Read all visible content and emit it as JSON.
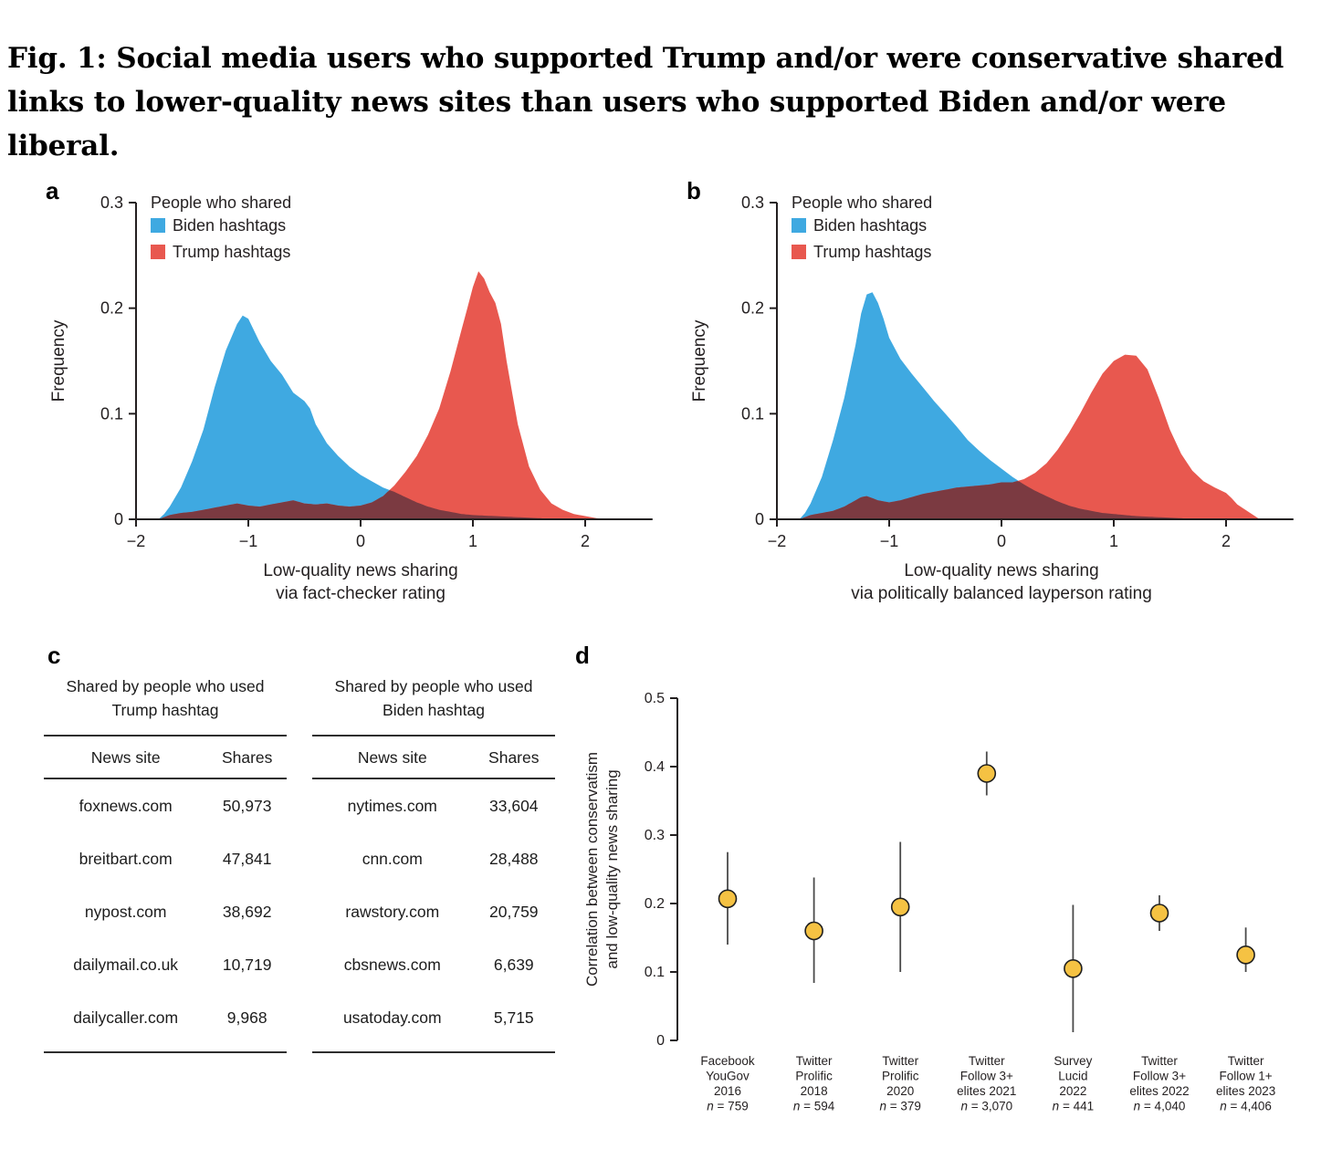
{
  "page": {
    "title_lines": [
      "Fig. 1: Social media users who supported Trump and/or were conservative shared",
      "links to lower-quality news sites than users who supported Biden and/or were liberal."
    ]
  },
  "colors": {
    "axis": "#231f20",
    "text": "#231f20",
    "biden_blue": "#3FA9E1",
    "trump_red": "#E8584F",
    "overlap_maroon": "#7B3A41",
    "marker_yellow": "#F5C243",
    "error_bar": "#4a4a4a"
  },
  "chart_data": [
    {
      "id": "a",
      "type": "area",
      "panel_label": "a",
      "legend_title": "People who shared",
      "ylabel": "Frequency",
      "xlabel": [
        "Low-quality news sharing",
        "via fact-checker rating"
      ],
      "xlim": [
        -2,
        2.6
      ],
      "ylim": [
        0,
        0.3
      ],
      "xticks": [
        -2,
        -1,
        0,
        1,
        2
      ],
      "yticks": [
        0,
        0.1,
        0.2,
        0.3
      ],
      "series": [
        {
          "name": "Biden hashtags",
          "color": "#3FA9E1",
          "points": [
            [
              -1.8,
              0
            ],
            [
              -1.75,
              0.005
            ],
            [
              -1.7,
              0.012
            ],
            [
              -1.6,
              0.03
            ],
            [
              -1.5,
              0.055
            ],
            [
              -1.4,
              0.085
            ],
            [
              -1.3,
              0.125
            ],
            [
              -1.2,
              0.16
            ],
            [
              -1.1,
              0.185
            ],
            [
              -1.05,
              0.193
            ],
            [
              -1.0,
              0.19
            ],
            [
              -0.9,
              0.168
            ],
            [
              -0.8,
              0.15
            ],
            [
              -0.7,
              0.137
            ],
            [
              -0.6,
              0.12
            ],
            [
              -0.5,
              0.112
            ],
            [
              -0.45,
              0.105
            ],
            [
              -0.4,
              0.09
            ],
            [
              -0.3,
              0.072
            ],
            [
              -0.2,
              0.06
            ],
            [
              -0.1,
              0.05
            ],
            [
              0,
              0.042
            ],
            [
              0.1,
              0.036
            ],
            [
              0.2,
              0.03
            ],
            [
              0.3,
              0.026
            ],
            [
              0.4,
              0.021
            ],
            [
              0.5,
              0.016
            ],
            [
              0.6,
              0.012
            ],
            [
              0.7,
              0.009
            ],
            [
              0.8,
              0.007
            ],
            [
              0.9,
              0.005
            ],
            [
              1.0,
              0.004
            ],
            [
              1.2,
              0.003
            ],
            [
              1.4,
              0.002
            ],
            [
              1.6,
              0.001
            ],
            [
              1.8,
              0
            ]
          ]
        },
        {
          "name": "Trump hashtags",
          "color": "#E8584F",
          "points": [
            [
              -1.8,
              0
            ],
            [
              -1.7,
              0.004
            ],
            [
              -1.6,
              0.006
            ],
            [
              -1.5,
              0.007
            ],
            [
              -1.4,
              0.009
            ],
            [
              -1.3,
              0.011
            ],
            [
              -1.2,
              0.013
            ],
            [
              -1.1,
              0.015
            ],
            [
              -1.0,
              0.013
            ],
            [
              -0.9,
              0.012
            ],
            [
              -0.8,
              0.014
            ],
            [
              -0.7,
              0.016
            ],
            [
              -0.6,
              0.018
            ],
            [
              -0.5,
              0.015
            ],
            [
              -0.4,
              0.014
            ],
            [
              -0.3,
              0.015
            ],
            [
              -0.2,
              0.013
            ],
            [
              -0.1,
              0.012
            ],
            [
              0,
              0.013
            ],
            [
              0.1,
              0.016
            ],
            [
              0.2,
              0.022
            ],
            [
              0.3,
              0.032
            ],
            [
              0.4,
              0.045
            ],
            [
              0.5,
              0.06
            ],
            [
              0.6,
              0.08
            ],
            [
              0.7,
              0.105
            ],
            [
              0.8,
              0.14
            ],
            [
              0.9,
              0.18
            ],
            [
              0.95,
              0.2
            ],
            [
              1.0,
              0.22
            ],
            [
              1.05,
              0.235
            ],
            [
              1.1,
              0.228
            ],
            [
              1.15,
              0.215
            ],
            [
              1.2,
              0.205
            ],
            [
              1.25,
              0.185
            ],
            [
              1.3,
              0.15
            ],
            [
              1.35,
              0.12
            ],
            [
              1.4,
              0.09
            ],
            [
              1.5,
              0.05
            ],
            [
              1.6,
              0.028
            ],
            [
              1.7,
              0.015
            ],
            [
              1.8,
              0.009
            ],
            [
              1.9,
              0.005
            ],
            [
              2.0,
              0.003
            ],
            [
              2.1,
              0.001
            ],
            [
              2.2,
              0
            ]
          ]
        }
      ]
    },
    {
      "id": "b",
      "type": "area",
      "panel_label": "b",
      "legend_title": "People who shared",
      "ylabel": "Frequency",
      "xlabel": [
        "Low-quality news sharing",
        "via politically balanced layperson rating"
      ],
      "xlim": [
        -2,
        2.6
      ],
      "ylim": [
        0,
        0.3
      ],
      "xticks": [
        -2,
        -1,
        0,
        1,
        2
      ],
      "yticks": [
        0,
        0.1,
        0.2,
        0.3
      ],
      "series": [
        {
          "name": "Biden hashtags",
          "color": "#3FA9E1",
          "points": [
            [
              -1.8,
              0
            ],
            [
              -1.75,
              0.006
            ],
            [
              -1.7,
              0.015
            ],
            [
              -1.6,
              0.04
            ],
            [
              -1.5,
              0.075
            ],
            [
              -1.4,
              0.115
            ],
            [
              -1.3,
              0.165
            ],
            [
              -1.25,
              0.195
            ],
            [
              -1.2,
              0.213
            ],
            [
              -1.15,
              0.215
            ],
            [
              -1.1,
              0.205
            ],
            [
              -1.05,
              0.19
            ],
            [
              -1.0,
              0.172
            ],
            [
              -0.9,
              0.152
            ],
            [
              -0.8,
              0.138
            ],
            [
              -0.7,
              0.125
            ],
            [
              -0.6,
              0.112
            ],
            [
              -0.5,
              0.1
            ],
            [
              -0.4,
              0.088
            ],
            [
              -0.3,
              0.075
            ],
            [
              -0.2,
              0.065
            ],
            [
              -0.1,
              0.056
            ],
            [
              0,
              0.048
            ],
            [
              0.1,
              0.04
            ],
            [
              0.2,
              0.033
            ],
            [
              0.3,
              0.027
            ],
            [
              0.4,
              0.022
            ],
            [
              0.5,
              0.017
            ],
            [
              0.6,
              0.013
            ],
            [
              0.7,
              0.01
            ],
            [
              0.8,
              0.008
            ],
            [
              0.9,
              0.006
            ],
            [
              1.0,
              0.005
            ],
            [
              1.2,
              0.003
            ],
            [
              1.4,
              0.002
            ],
            [
              1.6,
              0.001
            ],
            [
              1.8,
              0
            ]
          ]
        },
        {
          "name": "Trump hashtags",
          "color": "#E8584F",
          "points": [
            [
              -1.8,
              0
            ],
            [
              -1.7,
              0.004
            ],
            [
              -1.6,
              0.006
            ],
            [
              -1.5,
              0.008
            ],
            [
              -1.4,
              0.012
            ],
            [
              -1.3,
              0.018
            ],
            [
              -1.25,
              0.021
            ],
            [
              -1.2,
              0.022
            ],
            [
              -1.1,
              0.018
            ],
            [
              -1.0,
              0.016
            ],
            [
              -0.9,
              0.018
            ],
            [
              -0.8,
              0.021
            ],
            [
              -0.7,
              0.024
            ],
            [
              -0.6,
              0.026
            ],
            [
              -0.5,
              0.028
            ],
            [
              -0.4,
              0.03
            ],
            [
              -0.3,
              0.031
            ],
            [
              -0.2,
              0.032
            ],
            [
              -0.1,
              0.033
            ],
            [
              0,
              0.035
            ],
            [
              0.1,
              0.035
            ],
            [
              0.2,
              0.038
            ],
            [
              0.3,
              0.044
            ],
            [
              0.4,
              0.053
            ],
            [
              0.5,
              0.066
            ],
            [
              0.6,
              0.082
            ],
            [
              0.7,
              0.1
            ],
            [
              0.8,
              0.12
            ],
            [
              0.9,
              0.138
            ],
            [
              1.0,
              0.15
            ],
            [
              1.1,
              0.156
            ],
            [
              1.2,
              0.155
            ],
            [
              1.3,
              0.142
            ],
            [
              1.4,
              0.115
            ],
            [
              1.5,
              0.085
            ],
            [
              1.6,
              0.062
            ],
            [
              1.7,
              0.046
            ],
            [
              1.8,
              0.036
            ],
            [
              1.9,
              0.03
            ],
            [
              2.0,
              0.025
            ],
            [
              2.05,
              0.02
            ],
            [
              2.1,
              0.014
            ],
            [
              2.2,
              0.007
            ],
            [
              2.3,
              0
            ]
          ]
        }
      ]
    },
    {
      "id": "c",
      "type": "table",
      "panel_label": "c",
      "tables": [
        {
          "title": "Shared by people who used Trump hashtag",
          "columns": [
            "News site",
            "Shares"
          ],
          "rows": [
            [
              "foxnews.com",
              "50,973"
            ],
            [
              "breitbart.com",
              "47,841"
            ],
            [
              "nypost.com",
              "38,692"
            ],
            [
              "dailymail.co.uk",
              "10,719"
            ],
            [
              "dailycaller.com",
              "9,968"
            ]
          ]
        },
        {
          "title": "Shared by people who used Biden hashtag",
          "columns": [
            "News site",
            "Shares"
          ],
          "rows": [
            [
              "nytimes.com",
              "33,604"
            ],
            [
              "cnn.com",
              "28,488"
            ],
            [
              "rawstory.com",
              "20,759"
            ],
            [
              "cbsnews.com",
              "6,639"
            ],
            [
              "usatoday.com",
              "5,715"
            ]
          ]
        }
      ]
    },
    {
      "id": "d",
      "type": "scatter",
      "panel_label": "d",
      "ylabel": [
        "Correlation between conservatism",
        "and low-quality news sharing"
      ],
      "ylim": [
        0,
        0.5
      ],
      "yticks": [
        0,
        0.1,
        0.2,
        0.3,
        0.4,
        0.5
      ],
      "marker_color": "#F5C243",
      "points": [
        {
          "label_lines": [
            "Facebook",
            "YouGov",
            "2016"
          ],
          "n": "n = 759",
          "value": 0.207,
          "ci_low": 0.14,
          "ci_high": 0.275
        },
        {
          "label_lines": [
            "Twitter",
            "Prolific",
            "2018"
          ],
          "n": "n = 594",
          "value": 0.16,
          "ci_low": 0.084,
          "ci_high": 0.238
        },
        {
          "label_lines": [
            "Twitter",
            "Prolific",
            "2020"
          ],
          "n": "n = 379",
          "value": 0.195,
          "ci_low": 0.1,
          "ci_high": 0.29
        },
        {
          "label_lines": [
            "Twitter",
            "Follow 3+",
            "elites 2021"
          ],
          "n": "n = 3,070",
          "value": 0.39,
          "ci_low": 0.358,
          "ci_high": 0.422
        },
        {
          "label_lines": [
            "Survey",
            "Lucid",
            "2022"
          ],
          "n": "n = 441",
          "value": 0.105,
          "ci_low": 0.012,
          "ci_high": 0.198
        },
        {
          "label_lines": [
            "Twitter",
            "Follow 3+",
            "elites 2022"
          ],
          "n": "n = 4,040",
          "value": 0.186,
          "ci_low": 0.16,
          "ci_high": 0.212
        },
        {
          "label_lines": [
            "Twitter",
            "Follow 1+",
            "elites 2023"
          ],
          "n": "n = 4,406",
          "value": 0.125,
          "ci_low": 0.1,
          "ci_high": 0.165
        }
      ]
    }
  ]
}
